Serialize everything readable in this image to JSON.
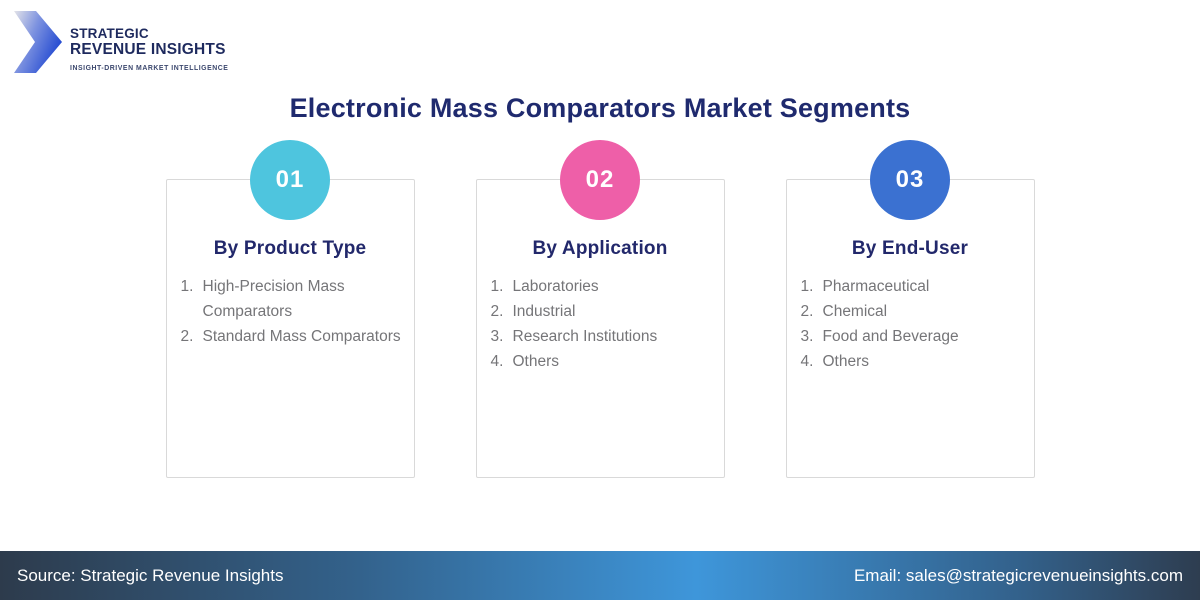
{
  "logo": {
    "name_line1": "STRATEGIC",
    "name_line2": "REVENUE INSIGHTS",
    "tagline": "INSIGHT-DRIVEN MARKET INTELLIGENCE"
  },
  "title": "Electronic Mass Comparators Market Segments",
  "cards": [
    {
      "number": "01",
      "accent": "#4ec5de",
      "heading": "By Product Type",
      "items": [
        "High-Precision Mass Comparators",
        "Standard Mass Comparators"
      ]
    },
    {
      "number": "02",
      "accent": "#ee5fa8",
      "heading": "By Application",
      "items": [
        "Laboratories",
        "Industrial",
        "Research Institutions",
        "Others"
      ]
    },
    {
      "number": "03",
      "accent": "#3b71d1",
      "heading": "By End-User",
      "items": [
        "Pharmaceutical",
        "Chemical",
        "Food and Beverage",
        "Others"
      ]
    }
  ],
  "footer": {
    "source": "Source: Strategic Revenue Insights",
    "email": "Email: sales@strategicrevenueinsights.com"
  },
  "colors": {
    "title_navy": "#1f2a6e",
    "list_gray": "#757578",
    "card_border": "#d9d9d9",
    "logo_navy": "#1e2a5e",
    "logo_blue": "#2148d1",
    "footer_dark": "#2d3b4c",
    "footer_blue": "#3e96da"
  }
}
